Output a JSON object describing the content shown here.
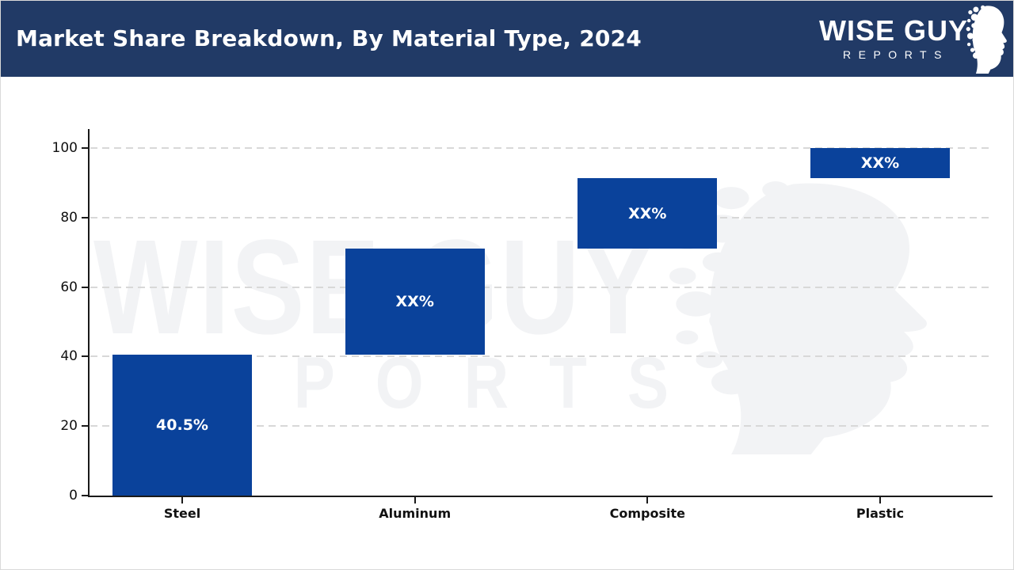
{
  "header": {
    "title": "Market Share Breakdown, By Material Type, 2024",
    "background_color": "#213a66",
    "logo": {
      "line1": "WISE GUY",
      "line2": "REPORTS",
      "face_icon": "dotted-head-profile"
    }
  },
  "watermark": {
    "line1": "WISE GUY",
    "line2": "REPORTS",
    "color": "#f2f3f5"
  },
  "chart_data": {
    "type": "bar",
    "subtype": "floating-waterfall",
    "categories": [
      "Steel",
      "Aluminum",
      "Composite",
      "Plastic"
    ],
    "series": [
      {
        "name": "Market share (%)",
        "segments": [
          {
            "category": "Steel",
            "start": 0,
            "end": 40.5,
            "label": "40.5%"
          },
          {
            "category": "Aluminum",
            "start": 40.5,
            "end": 71,
            "label": "XX%"
          },
          {
            "category": "Composite",
            "start": 71,
            "end": 91.3,
            "label": "XX%"
          },
          {
            "category": "Plastic",
            "start": 91.3,
            "end": 100,
            "label": "XX%"
          }
        ]
      }
    ],
    "ylim": [
      0,
      100
    ],
    "yticks": [
      0,
      20,
      40,
      60,
      80,
      100
    ],
    "xlabel": "",
    "ylabel": "",
    "grid": "horizontal-dashed",
    "legend": "none",
    "bar_color": "#0a429b",
    "bar_label_color": "#ffffff",
    "axis_color": "#1a1a1a",
    "gridline_color": "#d8d8d8"
  }
}
